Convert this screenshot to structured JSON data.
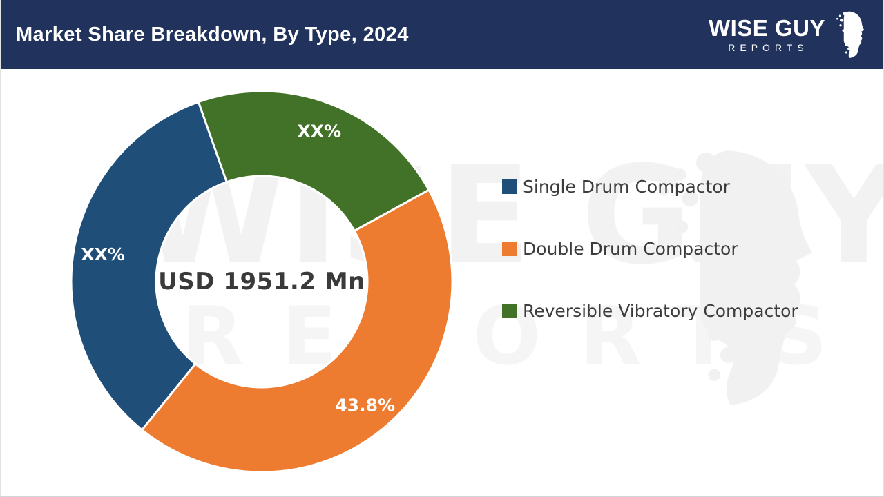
{
  "header": {
    "title": "Market Share Breakdown, By Type, 2024",
    "logo": {
      "brand_top": "WISE GUY",
      "brand_bottom": "REPORTS",
      "icon": "face-profile-dots-icon"
    }
  },
  "watermark": {
    "text_top": "WISE GUY",
    "text_bottom": "REPORTS"
  },
  "chart_data": {
    "type": "pie",
    "subtype": "donut",
    "title": "Market Share Breakdown, By Type, 2024",
    "center_label": "USD 1951.2 Mn",
    "start_angle_deg": -19.4,
    "legend_position": "right",
    "grid": false,
    "segments": [
      {
        "name": "Reversible Vibratory Compactor",
        "display_label": "XX%",
        "value_pct": 22.4,
        "color": "#427227"
      },
      {
        "name": "Double Drum Compactor",
        "display_label": "43.8%",
        "value_pct": 43.8,
        "color": "#ed7c30"
      },
      {
        "name": "Single Drum Compactor",
        "display_label": "XX%",
        "value_pct": 33.8,
        "color": "#1f4e79"
      }
    ],
    "legend": [
      {
        "label": "Single Drum Compactor",
        "color": "#1f4e79"
      },
      {
        "label": "Double Drum Compactor",
        "color": "#ed7c30"
      },
      {
        "label": "Reversible Vibratory Compactor",
        "color": "#427227"
      }
    ]
  },
  "colors": {
    "header_bg": "#21335c",
    "text_dark": "#3a3a3a",
    "watermark_gray": "#f2f2f2",
    "separator_white": "#ffffff",
    "page_border": "#d6d6d6"
  }
}
